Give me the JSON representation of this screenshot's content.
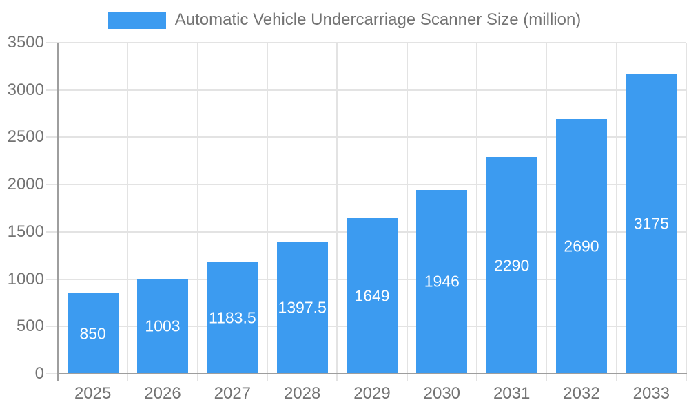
{
  "legend": {
    "label": "Automatic Vehicle Undercarriage Scanner Size (million)"
  },
  "chart_data": {
    "type": "bar",
    "title": "Automatic Vehicle Undercarriage Scanner Size (million)",
    "series": [
      {
        "name": "Automatic Vehicle Undercarriage Scanner Size (million)",
        "values": [
          850,
          1003,
          1183.5,
          1397.5,
          1649,
          1946,
          2290,
          2690,
          3175
        ],
        "value_labels": [
          "850",
          "1003",
          "1183.5",
          "1397.5",
          "1649",
          "1946",
          "2290",
          "2690",
          "3175"
        ]
      }
    ],
    "categories": [
      "2025",
      "2026",
      "2027",
      "2028",
      "2029",
      "2030",
      "2031",
      "2032",
      "2033"
    ],
    "xlabel": "",
    "ylabel": "",
    "ylim": [
      0,
      3500
    ],
    "yticks": [
      0,
      500,
      1000,
      1500,
      2000,
      2500,
      3000,
      3500
    ],
    "grid": true,
    "legend_position": "top",
    "colors": {
      "bar": "#3C9BF0",
      "grid": "#E3E3E3",
      "axis": "#9E9E9E",
      "tick": "#E3E3E3",
      "label": "#737373",
      "value_label": "#FFFFFF",
      "background": "#FFFFFF"
    }
  }
}
